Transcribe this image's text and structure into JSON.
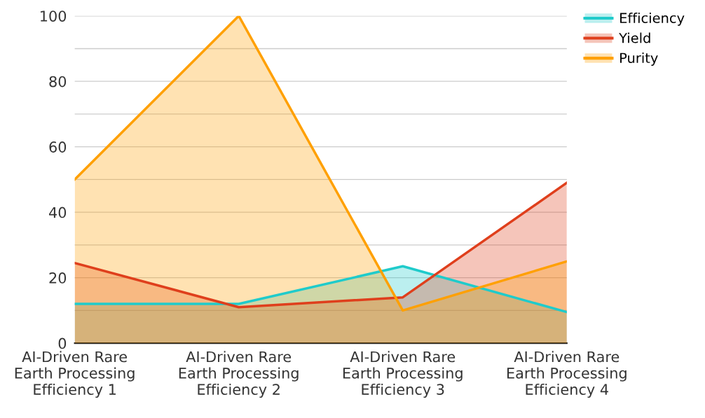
{
  "chart_data": {
    "type": "area",
    "categories": [
      "AI-Driven Rare\nEarth Processing\nEfficiency 1",
      "AI-Driven Rare\nEarth Processing\nEfficiency 2",
      "AI-Driven Rare\nEarth Processing\nEfficiency 3",
      "AI-Driven Rare\nEarth Processing\nEfficiency 4"
    ],
    "series": [
      {
        "name": "Efficiency",
        "color": "#1fcbcb",
        "values": [
          12,
          12,
          23.5,
          9.5
        ]
      },
      {
        "name": "Yield",
        "color": "#df3f1c",
        "values": [
          24.5,
          11,
          14,
          49
        ]
      },
      {
        "name": "Purity",
        "color": "#ffa000",
        "values": [
          50,
          100,
          10,
          25
        ]
      }
    ],
    "ylim": [
      0,
      100
    ],
    "yticks": [
      0,
      {
        "value": 10,
        "label": null
      },
      20,
      {
        "value": 30,
        "label": null
      },
      40,
      {
        "value": 50,
        "label": null
      },
      60,
      {
        "value": 70,
        "label": null
      },
      80,
      {
        "value": 90,
        "label": null
      },
      100
    ],
    "grid": "y",
    "legend": "top right",
    "marker": "none",
    "line_style": "solid"
  }
}
